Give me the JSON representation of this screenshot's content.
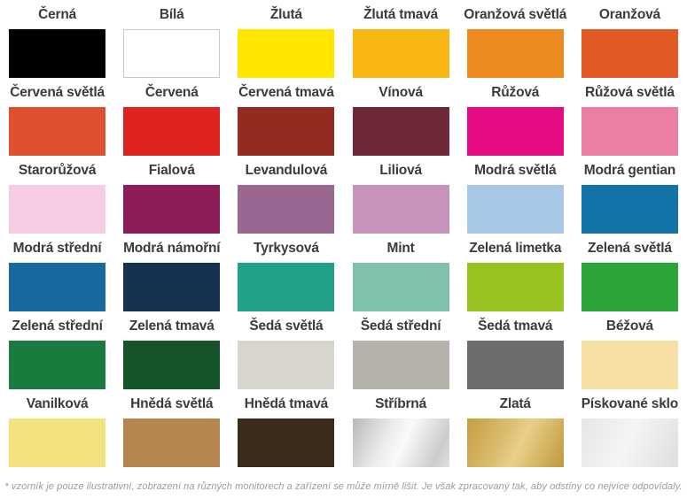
{
  "page": {
    "background": "#ffffff",
    "label_color": "#3b3b3b"
  },
  "footnote": "* vzorník je pouze ilustrativní, zobrazení na různých monitorech a zařízení se může mírně lišit. Je však zpracovaný tak, aby odstíny co nejvíce odpovídaly.",
  "grid": {
    "columns": 6,
    "rows": 6
  },
  "swatches": [
    {
      "name": "Černá",
      "color": "#000000"
    },
    {
      "name": "Bílá",
      "color": "#ffffff",
      "border": "#c9c9c9"
    },
    {
      "name": "Žlutá",
      "color": "#ffe600"
    },
    {
      "name": "Žlutá tmavá",
      "color": "#f8b712"
    },
    {
      "name": "Oranžová světlá",
      "color": "#ee8b1e"
    },
    {
      "name": "Oranžová",
      "color": "#e15a25"
    },
    {
      "name": "Červená světlá",
      "color": "#e0502f"
    },
    {
      "name": "Červená",
      "color": "#de2421"
    },
    {
      "name": "Červená tmavá",
      "color": "#942b20"
    },
    {
      "name": "Vínová",
      "color": "#6e2938"
    },
    {
      "name": "Růžová",
      "color": "#e40b84"
    },
    {
      "name": "Růžová světlá",
      "color": "#ec7da4"
    },
    {
      "name": "Starorůžová",
      "color": "#f5cce1"
    },
    {
      "name": "Fialová",
      "color": "#8e1c58"
    },
    {
      "name": "Levandulová",
      "color": "#9a6790"
    },
    {
      "name": "Liliová",
      "color": "#c893ba"
    },
    {
      "name": "Modrá světlá",
      "color": "#a8c8e8"
    },
    {
      "name": "Modrá gentian",
      "color": "#1274a6"
    },
    {
      "name": "Modrá střední",
      "color": "#17689e"
    },
    {
      "name": "Modrá námořní",
      "color": "#14314f"
    },
    {
      "name": "Tyrkysová",
      "color": "#22a187"
    },
    {
      "name": "Mint",
      "color": "#80c1ae"
    },
    {
      "name": "Zelená limetka",
      "color": "#98c21d"
    },
    {
      "name": "Zelená světlá",
      "color": "#2ba43a"
    },
    {
      "name": "Zelená střední",
      "color": "#197b3d"
    },
    {
      "name": "Zelená tmavá",
      "color": "#155429"
    },
    {
      "name": "Šedá světlá",
      "color": "#d8d5ce"
    },
    {
      "name": "Šedá střední",
      "color": "#b4b2ab"
    },
    {
      "name": "Šedá tmavá",
      "color": "#6d6d6d"
    },
    {
      "name": "Béžová",
      "color": "#f6e0a4"
    },
    {
      "name": "Vanilková",
      "color": "#f3e37e"
    },
    {
      "name": "Hnědá světlá",
      "color": "#b5854e"
    },
    {
      "name": "Hnědá tmavá",
      "color": "#3a2c1a"
    },
    {
      "name": "Stříbrná",
      "gradient": {
        "angle": 115,
        "stops": [
          "#b9b9b9 0%",
          "#ebebeb 35%",
          "#fafafa 52%",
          "#cccccc 85%",
          "#e0e0e0 100%"
        ]
      }
    },
    {
      "name": "Zlatá",
      "gradient": {
        "angle": 115,
        "stops": [
          "#c69d41 0%",
          "#dcbd70 38%",
          "#e8d08b 55%",
          "#c1973a 100%"
        ]
      }
    },
    {
      "name": "Pískované sklo",
      "gradient": {
        "angle": 115,
        "stops": [
          "#e6e6e4 0%",
          "#f5f5f3 48%",
          "#dededd 100%"
        ]
      }
    }
  ]
}
